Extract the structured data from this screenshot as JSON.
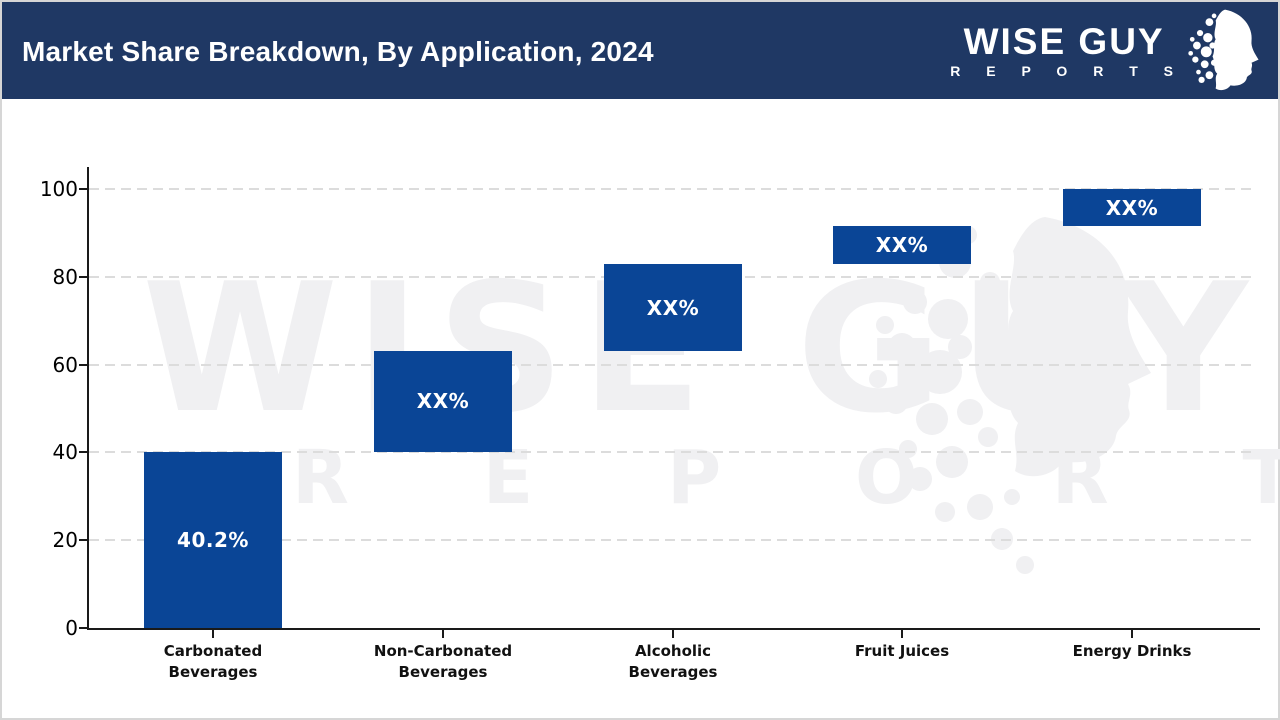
{
  "header": {
    "title": "Market Share Breakdown, By Application, 2024",
    "bg_color": "#1f3864",
    "logo": {
      "line1": "WISE GUY",
      "line2": "R E P O R T S"
    }
  },
  "watermark": {
    "line1": "WISE GUY",
    "line2": "R E P O R T S"
  },
  "chart_data": {
    "type": "bar",
    "subtype": "waterfall",
    "title": "Market Share Breakdown, By Application, 2024",
    "xlabel": "",
    "ylabel": "",
    "ylim": [
      0,
      105
    ],
    "yticks": [
      0,
      20,
      40,
      60,
      80,
      100
    ],
    "grid": "horizontal-dashed",
    "legend": "none",
    "bar_color": "#0a4596",
    "categories": [
      [
        "Carbonated",
        "Beverages"
      ],
      [
        "Non-Carbonated",
        "Beverages"
      ],
      [
        "Alcoholic",
        "Beverages"
      ],
      [
        "Fruit Juices"
      ],
      [
        "Energy Drinks"
      ]
    ],
    "segments": [
      {
        "category": "Carbonated Beverages",
        "start": 0,
        "end": 40.2,
        "label": "40.2%"
      },
      {
        "category": "Non-Carbonated Beverages",
        "start": 40.2,
        "end": 63,
        "label": "XX%"
      },
      {
        "category": "Alcoholic Beverages",
        "start": 63,
        "end": 83,
        "label": "XX%"
      },
      {
        "category": "Fruit Juices",
        "start": 83,
        "end": 91.5,
        "label": "XX%"
      },
      {
        "category": "Energy Drinks",
        "start": 91.5,
        "end": 100,
        "label": "XX%"
      }
    ]
  }
}
